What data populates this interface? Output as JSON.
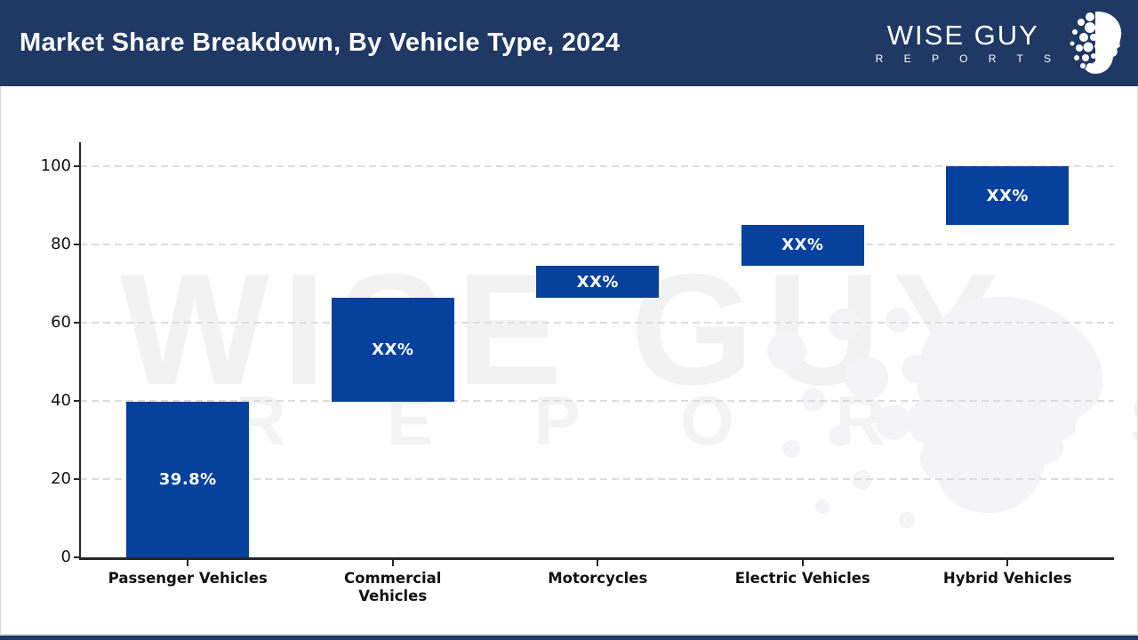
{
  "header": {
    "title": "Market Share Breakdown, By Vehicle Type, 2024",
    "logo": {
      "line1": "WISE GUY",
      "line2": "REPORTS"
    }
  },
  "watermark": {
    "line1": "WISE GUY",
    "line2": "REPORTS"
  },
  "colors": {
    "header_bg": "#1f3864",
    "footer_bg": "#1f3864",
    "bar": "#06419d",
    "bar_label": "#ffffff",
    "grid": "#dcdcdc",
    "axis": "#262626",
    "watermark": "#f2f2f2"
  },
  "chart_data": {
    "type": "bar",
    "subtype": "waterfall",
    "title": "Market Share Breakdown, By Vehicle Type, 2024",
    "categories": [
      "Passenger Vehicles",
      "Commercial Vehicles",
      "Motorcycles",
      "Electric Vehicles",
      "Hybrid Vehicles"
    ],
    "xtick_labels": [
      "Passenger Vehicles",
      "Commercial\nVehicles",
      "Motorcycles",
      "Electric Vehicles",
      "Hybrid Vehicles"
    ],
    "segments": [
      {
        "category": "Passenger Vehicles",
        "start": 0,
        "end": 39.8,
        "label": "39.8%"
      },
      {
        "category": "Commercial Vehicles",
        "start": 39.8,
        "end": 66.3,
        "label": "XX%"
      },
      {
        "category": "Motorcycles",
        "start": 66.3,
        "end": 74.6,
        "label": "XX%"
      },
      {
        "category": "Electric Vehicles",
        "start": 74.6,
        "end": 85.0,
        "label": "XX%"
      },
      {
        "category": "Hybrid Vehicles",
        "start": 85.0,
        "end": 100.0,
        "label": "XX%"
      }
    ],
    "xlabel": "",
    "ylabel": "",
    "yticks": [
      0,
      20,
      40,
      60,
      80,
      100
    ],
    "ylim": [
      0,
      106
    ],
    "grid": "dashed-horizontal",
    "legend": "none"
  }
}
